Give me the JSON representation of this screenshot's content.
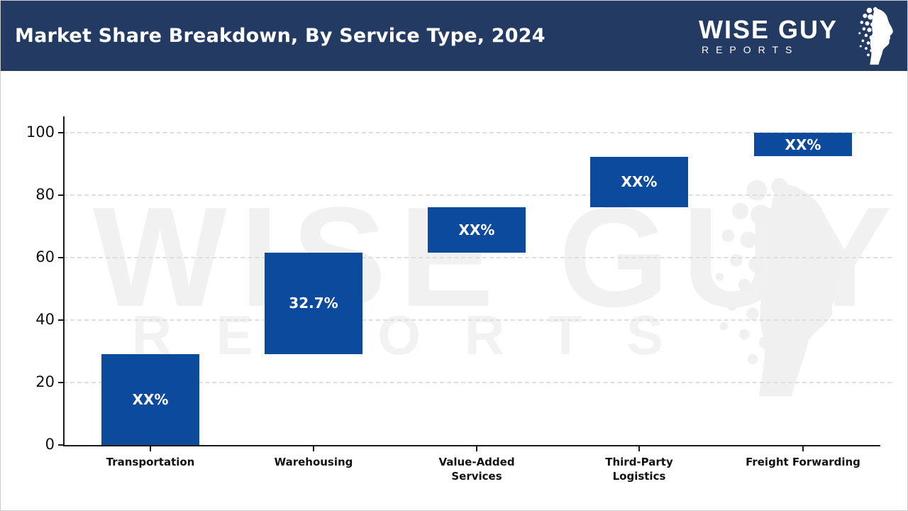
{
  "header": {
    "title": "Market Share Breakdown, By Service Type, 2024",
    "logo": {
      "primary": "WISE GUY",
      "secondary": "REPORTS"
    }
  },
  "watermark": {
    "primary": "WISE GUY",
    "secondary": "REPORTS"
  },
  "chart_data": {
    "type": "bar",
    "subtype": "waterfall",
    "title": "Market Share Breakdown, By Service Type, 2024",
    "xlabel": "",
    "ylabel": "",
    "ylim": [
      0,
      105
    ],
    "yticks": [
      0,
      20,
      40,
      60,
      80,
      100
    ],
    "grid": "horizontal-dashed",
    "legend": "none",
    "bar_color": "#0B4A9D",
    "bar_label_color": "#FFFFFF",
    "categories": [
      {
        "lines": [
          "Transportation"
        ]
      },
      {
        "lines": [
          "Warehousing"
        ]
      },
      {
        "lines": [
          "Value-Added",
          "Services"
        ]
      },
      {
        "lines": [
          "Third-Party",
          "Logistics"
        ]
      },
      {
        "lines": [
          "Freight Forwarding"
        ]
      }
    ],
    "segments": [
      {
        "category": "Transportation",
        "start": 0,
        "end": 29,
        "value": 29,
        "label": "XX%"
      },
      {
        "category": "Warehousing",
        "start": 29,
        "end": 61.7,
        "value": 32.7,
        "label": "32.7%"
      },
      {
        "category": "Value-Added Services",
        "start": 61.7,
        "end": 76.2,
        "value": 14.5,
        "label": "XX%"
      },
      {
        "category": "Third-Party Logistics",
        "start": 76.2,
        "end": 92.3,
        "value": 16.1,
        "label": "XX%"
      },
      {
        "category": "Freight Forwarding",
        "start": 92.5,
        "end": 100,
        "value": 7.5,
        "label": "XX%"
      }
    ]
  },
  "colors": {
    "header_bg": "#233A63",
    "bar": "#0B4A9D",
    "grid": "#DEDEDE",
    "axis": "#1A1A1A",
    "watermark": "#F1F1F1",
    "background": "#FFFFFF"
  }
}
